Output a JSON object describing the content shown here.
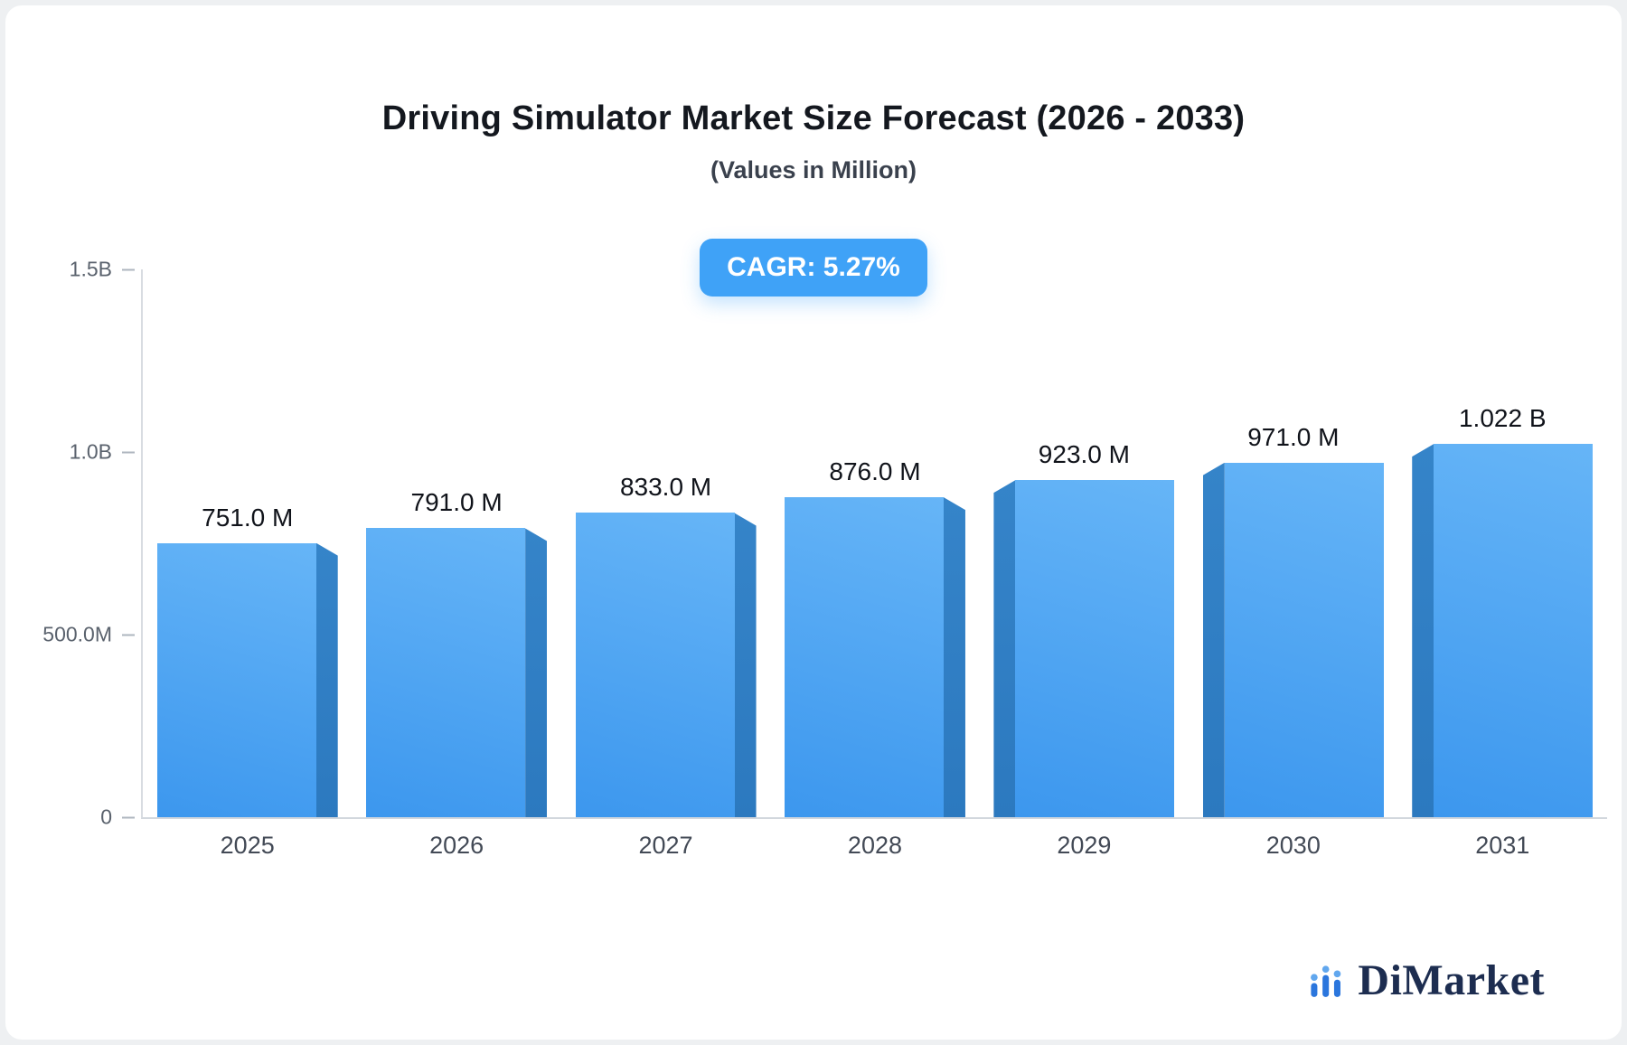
{
  "badge": {
    "label": "CAGR: 5.27%",
    "color": "#3fa2f7"
  },
  "logo": {
    "text": "DiMarket",
    "icon": "bar-chart-icon",
    "color": "#1d2d50"
  },
  "chart_data": {
    "type": "bar",
    "title": "Driving Simulator Market Size Forecast (2026 - 2033)",
    "subtitle": "(Values in Million)",
    "unit": "Million",
    "categories": [
      "2025",
      "2026",
      "2027",
      "2028",
      "2029",
      "2030",
      "2031"
    ],
    "values": [
      751,
      791,
      833,
      876,
      923,
      971,
      1022
    ],
    "value_labels": [
      "751.0 M",
      "791.0 M",
      "833.0 M",
      "876.0 M",
      "923.0 M",
      "971.0 M",
      "1.022 B"
    ],
    "xlabel": "",
    "ylabel": "",
    "ylim": [
      0,
      1500
    ],
    "y_ticks": [
      {
        "label": "1.5B",
        "value": 1500
      },
      {
        "label": "1.0B",
        "value": 1000
      },
      {
        "label": "500.0M",
        "value": 500
      },
      {
        "label": "0",
        "value": 0
      }
    ],
    "grid": false,
    "legend": "none",
    "bar_colors": {
      "front_top": "#66b5f7",
      "front_bottom": "#3c97ee",
      "side_top": "#3584c9",
      "side_bottom": "#2c79bf"
    }
  }
}
